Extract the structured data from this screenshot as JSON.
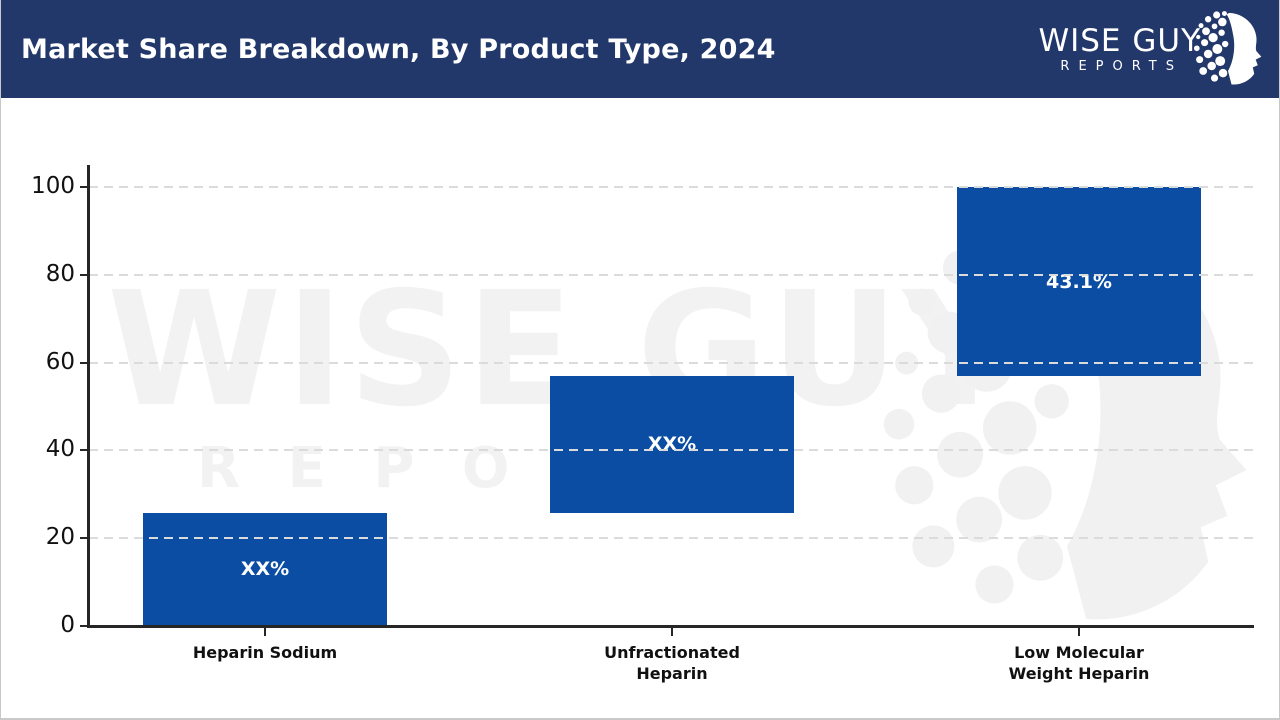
{
  "header": {
    "title": "Market Share Breakdown, By Product Type, 2024",
    "logo": {
      "line1": "WISE GUY",
      "line2": "REPORTS"
    }
  },
  "watermark": {
    "line1": "WISE GUY",
    "line2": "R E P O R T S"
  },
  "colors": {
    "header_bg": "#22386B",
    "bar_fill": "#0A4DA2",
    "gridline": "#DBDBDB",
    "axis": "#262626",
    "watermark": "#F2F2F2",
    "frame_border": "#C9C9C9",
    "bar_label_text": "#FFFFFF"
  },
  "chart_data": {
    "type": "bar",
    "subtype": "waterfall-stacked-percentage",
    "title": "Market Share Breakdown, By Product Type, 2024",
    "categories": [
      "Heparin Sodium",
      "Unfractionated Heparin",
      "Low Molecular Weight Heparin"
    ],
    "categories_lines": [
      [
        "Heparin Sodium"
      ],
      [
        "Unfractionated",
        "Heparin"
      ],
      [
        "Low Molecular",
        "Weight Heparin"
      ]
    ],
    "segments": [
      {
        "category": "Heparin Sodium",
        "start": 0,
        "end": 25.8,
        "label": "XX%"
      },
      {
        "category": "Unfractionated Heparin",
        "start": 25.8,
        "end": 56.9,
        "label": "XX%"
      },
      {
        "category": "Low Molecular Weight Heparin",
        "start": 56.9,
        "end": 100,
        "label": "43.1%"
      }
    ],
    "yticks": [
      0,
      20,
      40,
      60,
      80,
      100
    ],
    "ylim": [
      0,
      105
    ],
    "xlabel": "",
    "ylabel": "",
    "grid": "dashed-horizontal",
    "legend": "none"
  }
}
